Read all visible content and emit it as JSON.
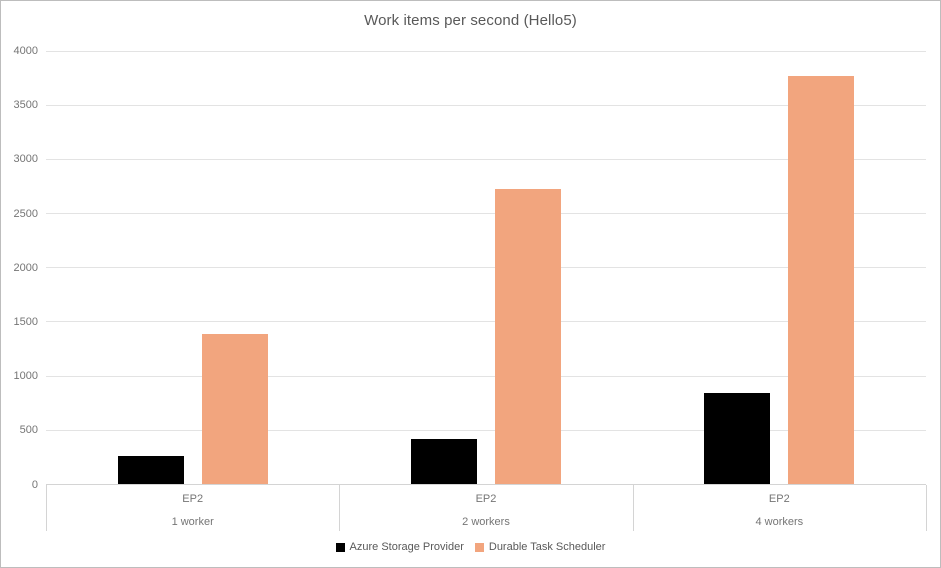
{
  "chart_data": {
    "type": "bar",
    "title": "Work items per second (Hello5)",
    "categories": [
      {
        "top": "EP2",
        "bottom": "1 worker"
      },
      {
        "top": "EP2",
        "bottom": "2 workers"
      },
      {
        "top": "EP2",
        "bottom": "4 workers"
      }
    ],
    "series": [
      {
        "name": "Azure Storage Provider",
        "color": "#000000",
        "values": [
          260,
          420,
          840
        ]
      },
      {
        "name": "Durable Task Scheduler",
        "color": "#F2A57E",
        "values": [
          1390,
          2730,
          3770
        ]
      }
    ],
    "ylim": [
      0,
      4000
    ],
    "yticks": [
      0,
      500,
      1000,
      1500,
      2000,
      2500,
      3000,
      3500,
      4000
    ],
    "xlabel": "",
    "ylabel": "",
    "grid": true,
    "legend_position": "bottom"
  }
}
